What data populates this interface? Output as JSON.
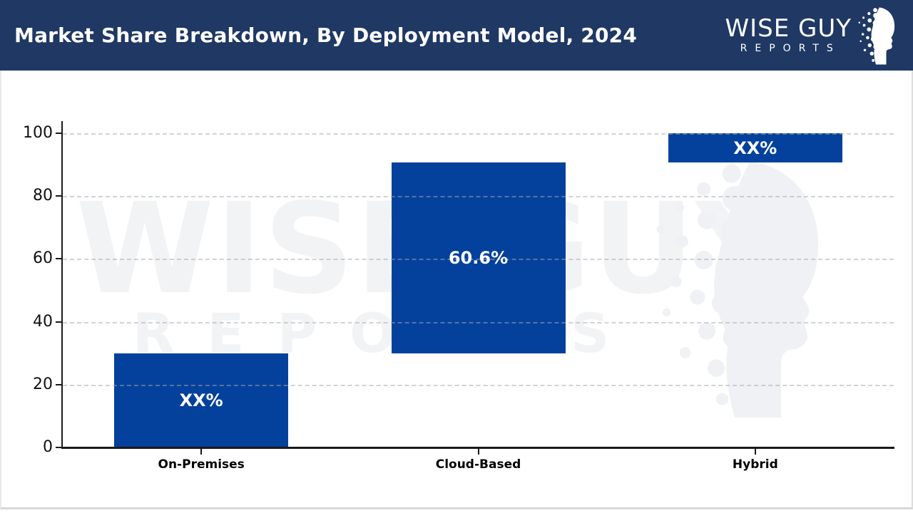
{
  "header": {
    "title": "Market Share Breakdown, By Deployment Model, 2024",
    "logo": {
      "name": "WISE GUY",
      "subname": "REPORTS"
    }
  },
  "watermark": {
    "name": "WISE GUY",
    "subname": "REPORTS"
  },
  "colors": {
    "header_bg": "#1F3864",
    "bar": "#04419C",
    "axis": "#1A1A1A",
    "grid": "#A8A8A8",
    "bar_label_text": "#FFFFFF",
    "watermark_text": "#F2F3F5",
    "watermark_icon": "#EFF1F4"
  },
  "chart_data": {
    "type": "bar",
    "subtype": "floating-waterfall-bars",
    "title": "Market Share Breakdown, By Deployment Model, 2024",
    "categories": [
      "On-Premises",
      "Cloud-Based",
      "Hybrid"
    ],
    "series": [
      {
        "name": "Market Share (%)",
        "segments": [
          {
            "category": "On-Premises",
            "start": 0,
            "end": 30,
            "value_label": "XX%"
          },
          {
            "category": "Cloud-Based",
            "start": 30,
            "end": 90.6,
            "value_label": "60.6%"
          },
          {
            "category": "Hybrid",
            "start": 90.6,
            "end": 100,
            "value_label": "XX%"
          }
        ]
      }
    ],
    "xlabel": "",
    "ylabel": "",
    "ylim": [
      0,
      100
    ],
    "yticks": [
      0,
      20,
      40,
      60,
      80,
      100
    ],
    "grid": "horizontal-dashed",
    "legend": "none"
  }
}
